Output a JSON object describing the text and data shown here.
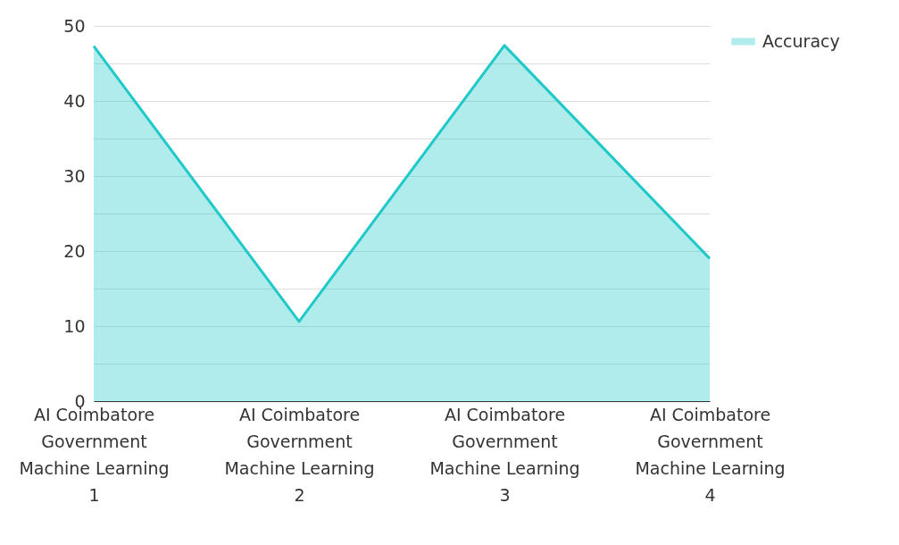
{
  "chart_data": {
    "type": "area",
    "categories": [
      "AI Coimbatore Government Machine Learning 1",
      "AI Coimbatore Government Machine Learning 2",
      "AI Coimbatore Government Machine Learning 3",
      "AI Coimbatore Government Machine Learning 4"
    ],
    "series": [
      {
        "name": "Accuracy",
        "color": "#1fc9c9",
        "values": [
          47.3,
          10.6,
          47.4,
          19.0
        ]
      }
    ],
    "ylim": [
      0,
      50
    ],
    "yticks": [
      0,
      {
        "value": 5,
        "label": null
      },
      10,
      {
        "value": 15,
        "label": null
      },
      20,
      {
        "value": 25,
        "label": null
      },
      30,
      {
        "value": 35,
        "label": null
      },
      40,
      {
        "value": 45,
        "label": null
      },
      50
    ],
    "grid": "y",
    "legend": "top right"
  }
}
